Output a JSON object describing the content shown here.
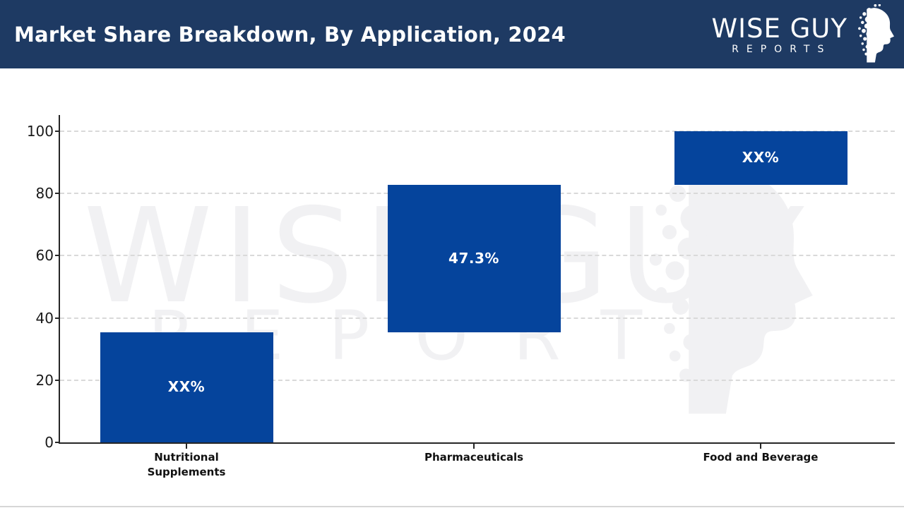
{
  "header": {
    "title": "Market Share Breakdown, By Application, 2024",
    "logo_line1": "WISE GUY",
    "logo_line2": "REPORTS"
  },
  "watermark": {
    "line1": "WISE GUY",
    "line2": "REPORTS"
  },
  "colors": {
    "header_bg": "#1e3a63",
    "bar": "#05449c",
    "grid": "#d9d9d9",
    "axis": "#262626",
    "watermark": "#f1f1f3"
  },
  "chart_data": {
    "type": "bar",
    "subtype": "floating-segment-breakdown",
    "title": "Market Share Breakdown, By Application, 2024",
    "categories": [
      "Nutritional\nSupplements",
      "Pharmaceuticals",
      "Food and Beverage"
    ],
    "bars": [
      {
        "category": "Nutritional\nSupplements",
        "label": "XX%",
        "start": 0,
        "end": 35.4
      },
      {
        "category": "Pharmaceuticals",
        "label": "47.3%",
        "start": 35.4,
        "end": 82.7
      },
      {
        "category": "Food and Beverage",
        "label": "XX%",
        "start": 82.7,
        "end": 100
      }
    ],
    "y_ticks": [
      0,
      20,
      40,
      60,
      80,
      100
    ],
    "ylim": [
      0,
      105
    ],
    "xlabel": "",
    "ylabel": "",
    "grid": "horizontal-dashed",
    "legend": "none",
    "bar_color": "#05449c",
    "label_color": "#ffffff"
  }
}
